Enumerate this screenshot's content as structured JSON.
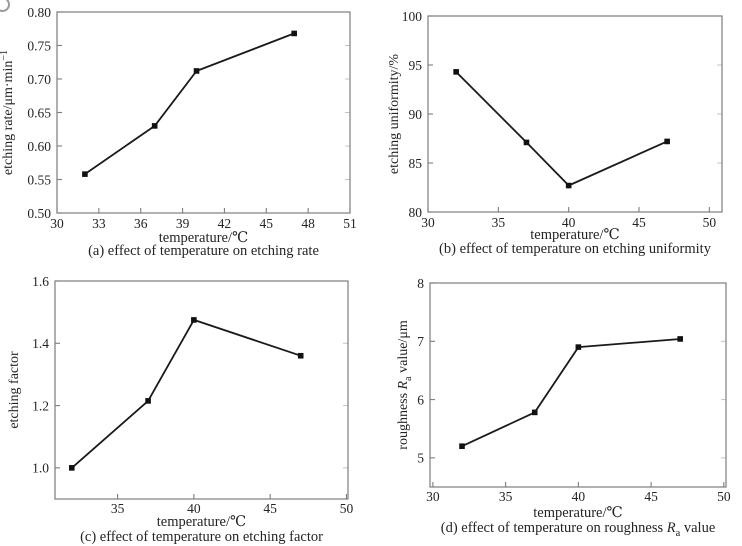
{
  "style": {
    "background": "#ffffff",
    "line_color": "#1a1a1a",
    "marker_color": "#111111",
    "frame_color": "#7d7d7d",
    "text_color": "#242424"
  },
  "chart_data": [
    {
      "id": "a",
      "type": "line",
      "caption_parts": [
        {
          "t": "(a) effect of temperature on etching rate"
        }
      ],
      "xlabel": "temperature/℃",
      "ylabel_parts": [
        {
          "t": "etching rate/μm·min"
        },
        {
          "t": "−1",
          "sup": true
        }
      ],
      "x": {
        "min": 30,
        "max": 51,
        "ticks": [
          30,
          33,
          36,
          39,
          42,
          45,
          48,
          51
        ],
        "labels": [
          "30",
          "33",
          "36",
          "39",
          "42",
          "45",
          "48",
          "51"
        ]
      },
      "y": {
        "min": 0.5,
        "max": 0.8,
        "ticks": [
          0.5,
          0.55,
          0.6,
          0.65,
          0.7,
          0.75,
          0.8
        ],
        "labels": [
          "0.50",
          "0.55",
          "0.60",
          "0.65",
          "0.70",
          "0.75",
          "0.80"
        ]
      },
      "points": [
        [
          32,
          0.558
        ],
        [
          37,
          0.63
        ],
        [
          40,
          0.712
        ],
        [
          47,
          0.768
        ]
      ],
      "grid": false,
      "legend": "none"
    },
    {
      "id": "b",
      "type": "line",
      "caption_parts": [
        {
          "t": "(b) effect of temperature on etching uniformity"
        }
      ],
      "xlabel": "temperature/℃",
      "ylabel_parts": [
        {
          "t": "etching uniformity/%"
        }
      ],
      "x": {
        "min": 30,
        "max": 50.9,
        "ticks": [
          30,
          35,
          40,
          45,
          50
        ],
        "labels": [
          "30",
          "35",
          "40",
          "45",
          "50"
        ]
      },
      "y": {
        "min": 80,
        "max": 100,
        "ticks": [
          80,
          85,
          90,
          95,
          100
        ],
        "labels": [
          "80",
          "85",
          "90",
          "95",
          "100"
        ]
      },
      "points": [
        [
          32,
          94.3
        ],
        [
          37,
          87.1
        ],
        [
          40,
          82.7
        ],
        [
          47,
          87.2
        ]
      ],
      "grid": false,
      "legend": "none"
    },
    {
      "id": "c",
      "type": "line",
      "caption_parts": [
        {
          "t": "(c) effect of temperature on etching factor"
        }
      ],
      "xlabel": "temperature/℃",
      "ylabel_parts": [
        {
          "t": "etching factor"
        }
      ],
      "x": {
        "min": 30.9,
        "max": 50.1,
        "ticks": [
          35,
          40,
          45,
          50
        ],
        "labels": [
          "35",
          "40",
          "45",
          "50"
        ]
      },
      "y": {
        "min": 0.9,
        "max": 1.6,
        "ticks": [
          1.0,
          1.2,
          1.4,
          1.6
        ],
        "labels": [
          "1.0",
          "1.2",
          "1.4",
          "1.6"
        ]
      },
      "points": [
        [
          32,
          1.0
        ],
        [
          37,
          1.215
        ],
        [
          40,
          1.475
        ],
        [
          47,
          1.36
        ]
      ],
      "grid": false,
      "legend": "none"
    },
    {
      "id": "d",
      "type": "line",
      "caption_parts": [
        {
          "t": "(d) effect of temperature on roughness "
        },
        {
          "t": "R",
          "italic": true
        },
        {
          "t": "a",
          "sub": true
        },
        {
          "t": " value"
        }
      ],
      "xlabel": "temperature/℃",
      "ylabel_parts": [
        {
          "t": "roughness "
        },
        {
          "t": "R",
          "italic": true
        },
        {
          "t": "a",
          "sub": true
        },
        {
          "t": " value/μm"
        }
      ],
      "x": {
        "min": 29.8,
        "max": 50.15,
        "ticks": [
          30,
          35,
          40,
          45,
          50
        ],
        "labels": [
          "30",
          "35",
          "40",
          "45",
          "50"
        ]
      },
      "y": {
        "min": 4.5,
        "max": 8,
        "ticks": [
          5,
          6,
          7,
          8
        ],
        "labels": [
          "5",
          "6",
          "7",
          "8"
        ]
      },
      "points": [
        [
          32,
          5.2
        ],
        [
          37,
          5.78
        ],
        [
          40,
          6.9
        ],
        [
          47,
          7.04
        ]
      ],
      "grid": false,
      "legend": "none"
    }
  ]
}
